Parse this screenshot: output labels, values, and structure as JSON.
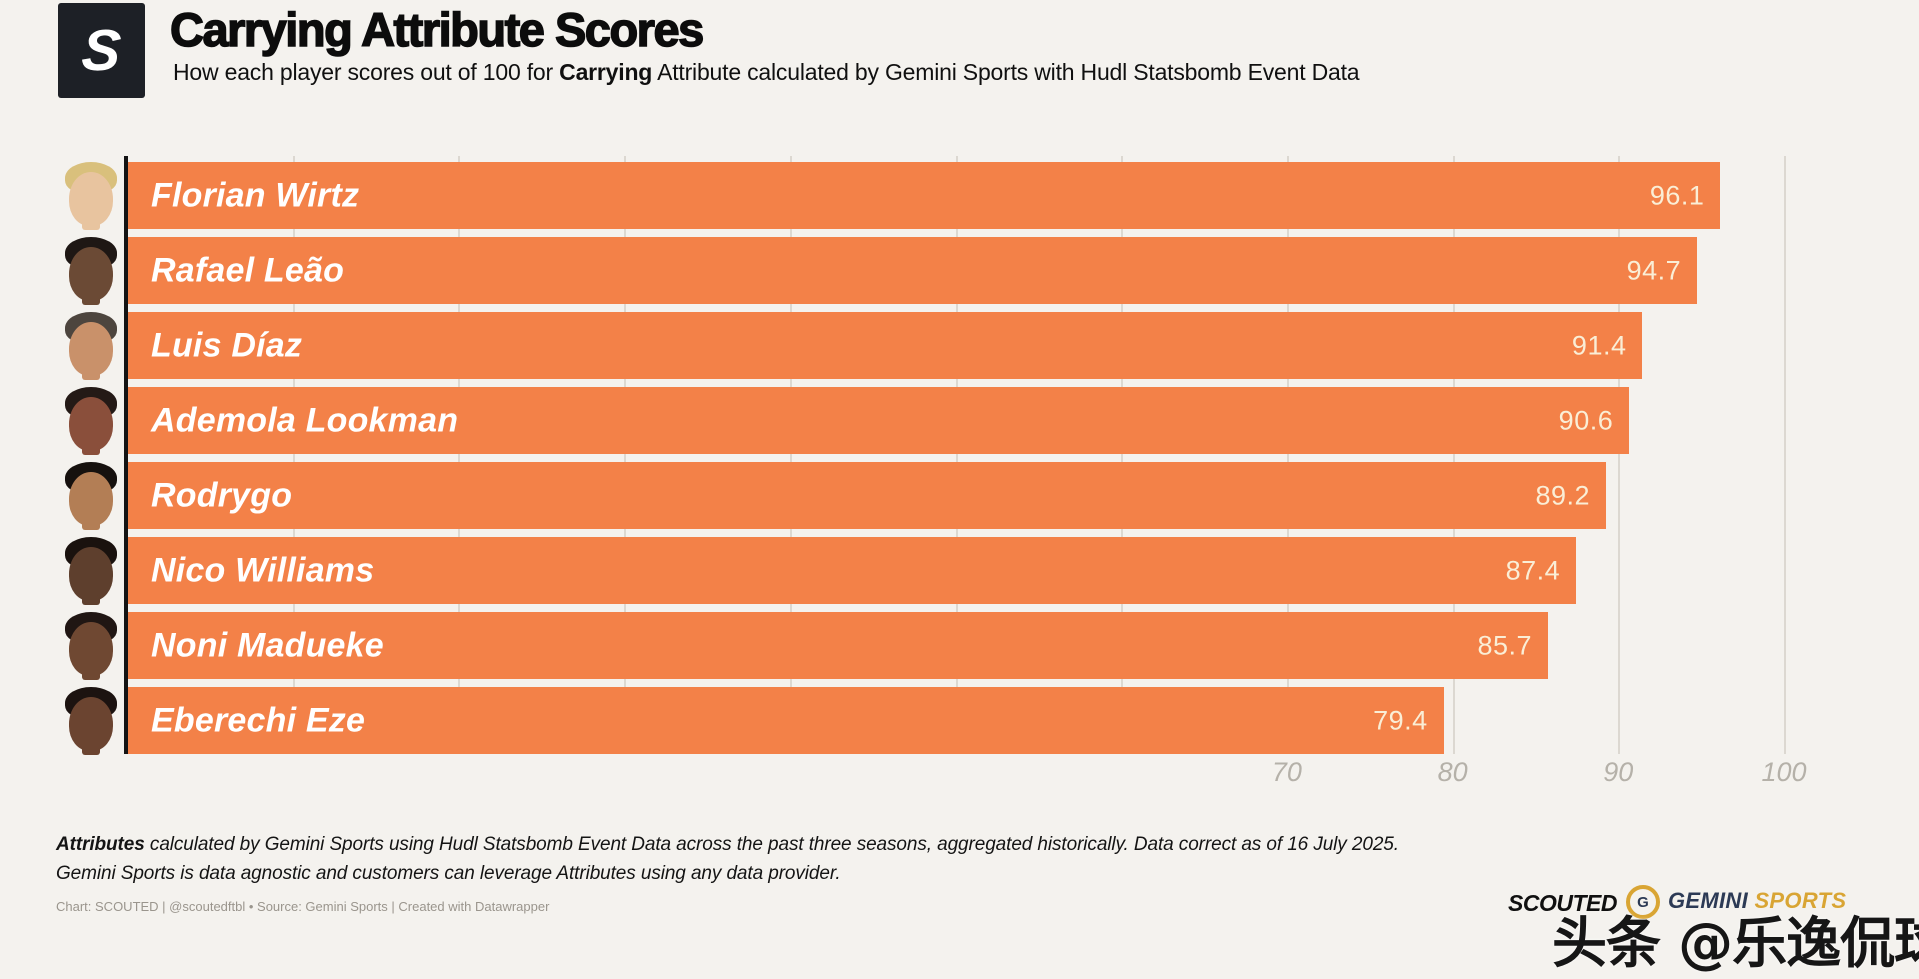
{
  "header": {
    "logo_letter": "S",
    "title": "Carrying Attribute Scores",
    "subtitle_prefix": "How each player scores out of 100 for ",
    "subtitle_bold": "Carrying",
    "subtitle_suffix": " Attribute calculated by Gemini Sports with Hudl Statsbomb Event Data"
  },
  "chart_data": {
    "type": "bar",
    "orientation": "horizontal",
    "title": "Carrying Attribute Scores",
    "categories": [
      "Florian Wirtz",
      "Rafael Leão",
      "Luis Díaz",
      "Ademola Lookman",
      "Rodrygo",
      "Nico Williams",
      "Noni Madueke",
      "Eberechi Eze"
    ],
    "values": [
      96.1,
      94.7,
      91.4,
      90.6,
      89.2,
      87.4,
      85.7,
      79.4
    ],
    "value_labels": [
      "96.1",
      "94.7",
      "91.4",
      "90.6",
      "89.2",
      "87.4",
      "85.7",
      "79.4"
    ],
    "x_range": [
      0,
      100
    ],
    "x_ticks": [
      70,
      80,
      90,
      100
    ],
    "gridline_step": 10,
    "grid": true,
    "legend": "none",
    "bar_color": "#f38148",
    "name_label_color": "#ffffff",
    "value_label_color": "#faeed6"
  },
  "players": [
    {
      "name": "Florian Wirtz",
      "value": 96.1,
      "label": "96.1",
      "skin": "#e8c49f",
      "hair": "#d9c07c"
    },
    {
      "name": "Rafael Leão",
      "value": 94.7,
      "label": "94.7",
      "skin": "#6b4a35",
      "hair": "#1e1714"
    },
    {
      "name": "Luis Díaz",
      "value": 91.4,
      "label": "91.4",
      "skin": "#c9916a",
      "hair": "#4d453e"
    },
    {
      "name": "Ademola Lookman",
      "value": 90.6,
      "label": "90.6",
      "skin": "#8a4f3b",
      "hair": "#241a16"
    },
    {
      "name": "Rodrygo",
      "value": 89.2,
      "label": "89.2",
      "skin": "#b37e55",
      "hair": "#16110e"
    },
    {
      "name": "Nico Williams",
      "value": 87.4,
      "label": "87.4",
      "skin": "#5e3f2d",
      "hair": "#1a120e"
    },
    {
      "name": "Noni Madueke",
      "value": 85.7,
      "label": "85.7",
      "skin": "#6f4832",
      "hair": "#201613"
    },
    {
      "name": "Eberechi Eze",
      "value": 79.4,
      "label": "79.4",
      "skin": "#6b4430",
      "hair": "#1c1310"
    }
  ],
  "notes": {
    "line1_bold": "Attributes",
    "line1_rest": " calculated by Gemini Sports using Hudl Statsbomb Event Data across the past three seasons, aggregated historically. Data correct as of 16 July 2025.",
    "line2": "Gemini Sports is data agnostic and customers can leverage Attributes using any data provider."
  },
  "credit": "Chart: SCOUTED | @scoutedftbl • Source: Gemini Sports | Created with Datawrapper",
  "logos": {
    "scouted": "SCOUTED",
    "gemini_badge_letter": "G",
    "gemini_word": "GEMINI",
    "sports_word": "SPORTS"
  },
  "watermark": "头条 @乐逸侃球"
}
